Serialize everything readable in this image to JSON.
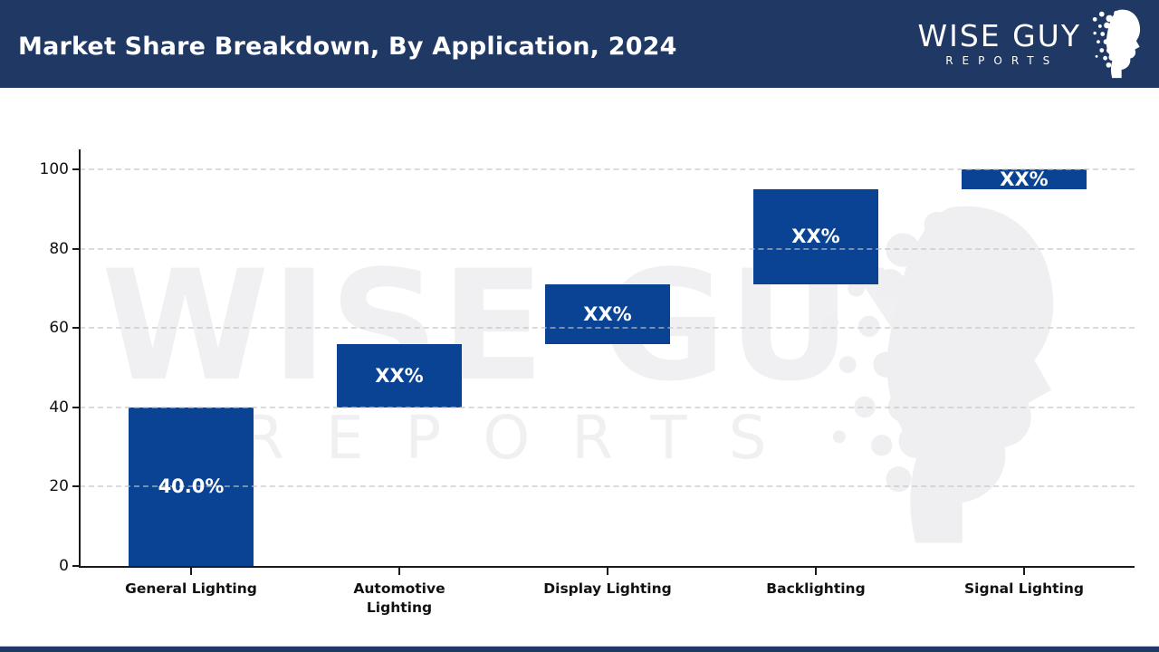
{
  "header": {
    "title": "Market Share Breakdown, By Application, 2024",
    "bg_color": "#1f3864",
    "logo": {
      "line1": "WISE GUY",
      "line2": "REPORTS"
    }
  },
  "watermark": {
    "line1": "WISE GUY",
    "line2": "REPORTS"
  },
  "chart_data": {
    "type": "bar",
    "subtype": "waterfall",
    "title": "Market Share Breakdown, By Application, 2024",
    "unit": "%",
    "categories": [
      [
        "General Lighting"
      ],
      [
        "Automotive",
        "Lighting"
      ],
      [
        "Display Lighting"
      ],
      [
        "Backlighting"
      ],
      [
        "Signal Lighting"
      ]
    ],
    "segments": [
      {
        "category": "General Lighting",
        "start": 0,
        "end": 40,
        "value": 40.0,
        "value_label": "40.0%"
      },
      {
        "category": "Automotive Lighting",
        "start": 40,
        "end": 56,
        "value": 16,
        "value_label": "XX%"
      },
      {
        "category": "Display Lighting",
        "start": 56,
        "end": 71,
        "value": 15,
        "value_label": "XX%"
      },
      {
        "category": "Backlighting",
        "start": 71,
        "end": 95,
        "value": 24,
        "value_label": "XX%"
      },
      {
        "category": "Signal Lighting",
        "start": 95,
        "end": 100,
        "value": 5,
        "value_label": "XX%"
      }
    ],
    "yticks": [
      0,
      20,
      40,
      60,
      80,
      100
    ],
    "ylim": [
      0,
      105
    ],
    "xlabel": "",
    "ylabel": "",
    "bar_color": "#0a4394",
    "grid": true,
    "gridline_color": "#c9c9c9",
    "legend": false
  },
  "footer": {
    "strip_color": "#1f3864"
  }
}
